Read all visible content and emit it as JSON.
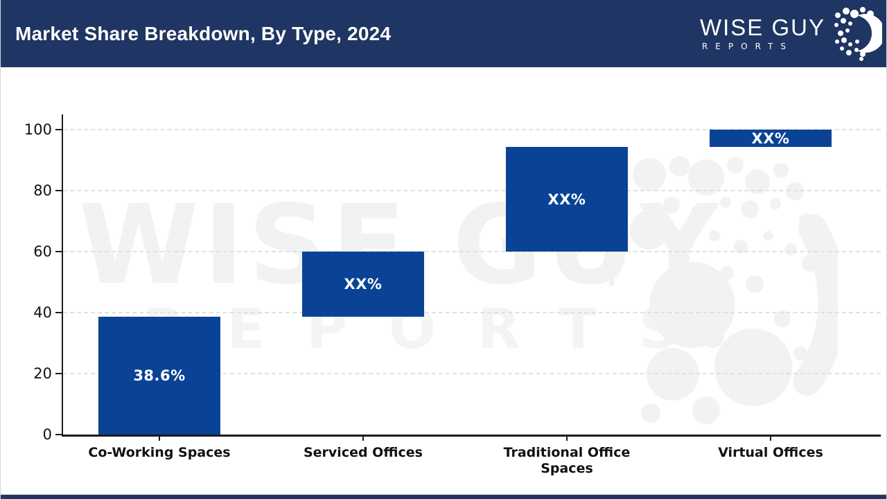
{
  "header": {
    "title": "Market Share Breakdown, By Type, 2024",
    "logo_line1": "WISE GUY",
    "logo_line2": "REPORTS",
    "bg_color": "#1F3563"
  },
  "watermark": {
    "line1": "WISE GUY",
    "line2": "REPORTS"
  },
  "chart_data": {
    "type": "bar",
    "subtype": "waterfall",
    "title": "Market Share Breakdown, By Type, 2024",
    "categories": [
      "Co-Working Spaces",
      "Serviced Offices",
      "Traditional Office Spaces",
      "Virtual Offices"
    ],
    "segments": [
      {
        "category": "Co-Working Spaces",
        "start": 0,
        "end": 38.6,
        "label": "38.6%"
      },
      {
        "category": "Serviced Offices",
        "start": 38.6,
        "end": 60,
        "label": "XX%"
      },
      {
        "category": "Traditional Office Spaces",
        "start": 60,
        "end": 94.3,
        "label": "XX%"
      },
      {
        "category": "Virtual Offices",
        "start": 94.3,
        "end": 100,
        "label": "XX%"
      }
    ],
    "y_ticks": [
      0,
      20,
      40,
      60,
      80,
      100
    ],
    "ylim": [
      0,
      105
    ],
    "xlabel": "",
    "ylabel": "",
    "legend": "none",
    "grid": "horizontal-dashed",
    "bar_color": "#0A4396",
    "bar_label_color": "#FFFFFF",
    "axis_color": "#1a1a1a"
  }
}
